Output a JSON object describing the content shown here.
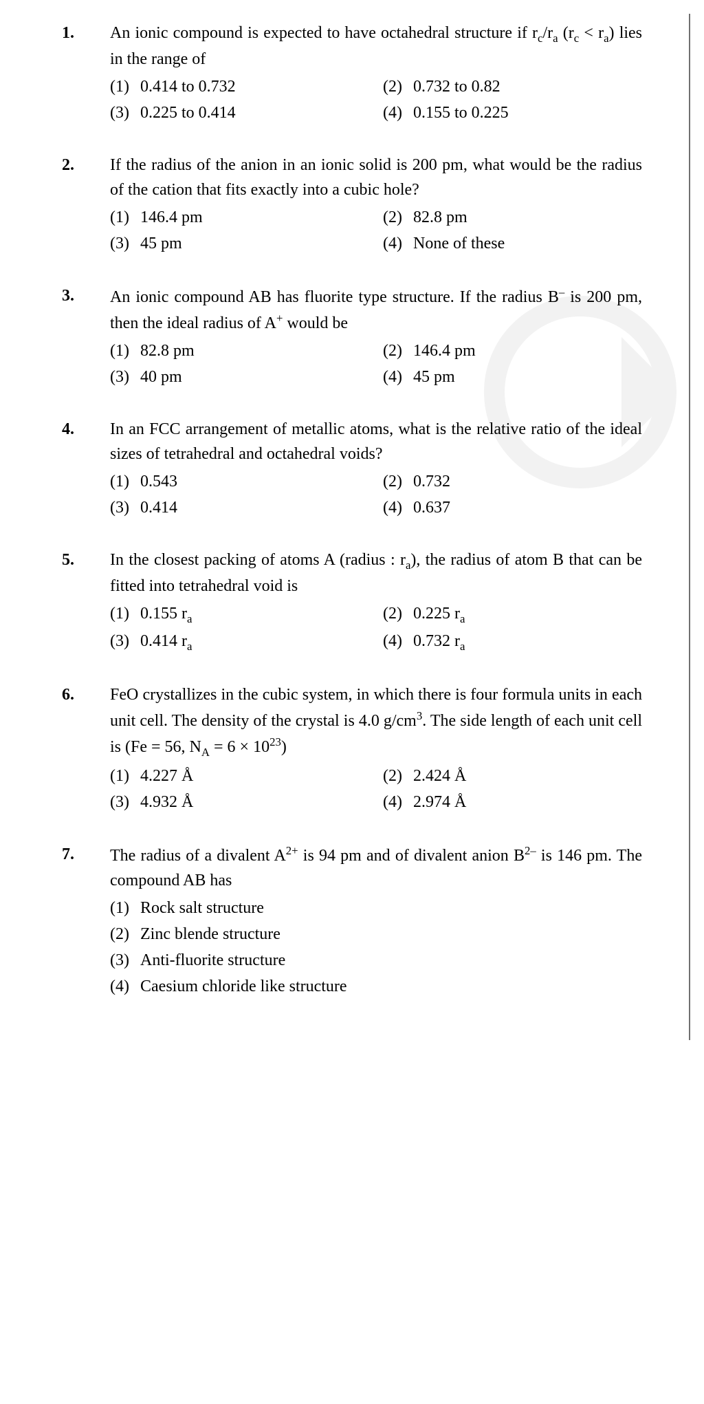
{
  "questions": [
    {
      "num": "1.",
      "stem_html": "An ionic compound is expected to have octahedral structure if r<sub>c</sub>/r<sub>a</sub> (r<sub>c</sub> &lt; r<sub>a</sub>) lies in the range of",
      "options": [
        {
          "n": "(1)",
          "t": "0.414 to 0.732"
        },
        {
          "n": "(2)",
          "t": "0.732 to 0.82"
        },
        {
          "n": "(3)",
          "t": "0.225 to 0.414"
        },
        {
          "n": "(4)",
          "t": "0.155 to 0.225"
        }
      ],
      "cols": 2
    },
    {
      "num": "2.",
      "stem_html": "If the radius of the anion in an ionic solid is 200 pm, what would be the radius of the cation that fits exactly into a cubic hole?",
      "options": [
        {
          "n": "(1)",
          "t": "146.4 pm"
        },
        {
          "n": "(2)",
          "t": "82.8 pm"
        },
        {
          "n": "(3)",
          "t": "45 pm"
        },
        {
          "n": "(4)",
          "t": "None of these"
        }
      ],
      "cols": 2
    },
    {
      "num": "3.",
      "stem_html": "An ionic compound AB has fluorite type structure. If the radius B<sup>&#8211;</sup> is 200 pm, then the ideal radius of A<sup>+</sup> would be",
      "options": [
        {
          "n": "(1)",
          "t": "82.8 pm"
        },
        {
          "n": "(2)",
          "t": "146.4 pm"
        },
        {
          "n": "(3)",
          "t": "40 pm"
        },
        {
          "n": "(4)",
          "t": "45 pm"
        }
      ],
      "cols": 2
    },
    {
      "num": "4.",
      "stem_html": "In an FCC arrangement of metallic atoms, what is the relative ratio of the ideal sizes of tetrahedral and octahedral voids?",
      "options": [
        {
          "n": "(1)",
          "t": "0.543"
        },
        {
          "n": "(2)",
          "t": "0.732"
        },
        {
          "n": "(3)",
          "t": "0.414"
        },
        {
          "n": "(4)",
          "t": "0.637"
        }
      ],
      "cols": 2
    },
    {
      "num": "5.",
      "stem_html": "In the closest packing of atoms A (radius : r<sub>a</sub>), the radius of atom B that can be fitted into tetrahedral void is",
      "options": [
        {
          "n": "(1)",
          "t_html": "0.155 r<sub>a</sub>"
        },
        {
          "n": "(2)",
          "t_html": "0.225 r<sub>a</sub>"
        },
        {
          "n": "(3)",
          "t_html": "0.414 r<sub>a</sub>"
        },
        {
          "n": "(4)",
          "t_html": "0.732 r<sub>a</sub>"
        }
      ],
      "cols": 2
    },
    {
      "num": "6.",
      "stem_html": "FeO crystallizes in the cubic system, in which there is four formula units in each unit cell. The density of the crystal is 4.0 g/cm<sup>3</sup>. The side length of each unit cell is (Fe = 56, N<sub>A</sub> = 6 &times; 10<sup>23</sup>)",
      "options": [
        {
          "n": "(1)",
          "t": "4.227 Å"
        },
        {
          "n": "(2)",
          "t": "2.424 Å"
        },
        {
          "n": "(3)",
          "t": "4.932 Å"
        },
        {
          "n": "(4)",
          "t": "2.974 Å"
        }
      ],
      "cols": 2
    },
    {
      "num": "7.",
      "stem_html": "The radius of a divalent A<sup>2+</sup> is 94 pm and of divalent anion B<sup>2&#8211;</sup> is 146 pm. The compound AB has",
      "options": [
        {
          "n": "(1)",
          "t": "Rock salt structure"
        },
        {
          "n": "(2)",
          "t": "Zinc blende structure"
        },
        {
          "n": "(3)",
          "t": "Anti-fluorite structure"
        },
        {
          "n": "(4)",
          "t": "Caesium chloride like structure"
        }
      ],
      "cols": 1
    }
  ]
}
